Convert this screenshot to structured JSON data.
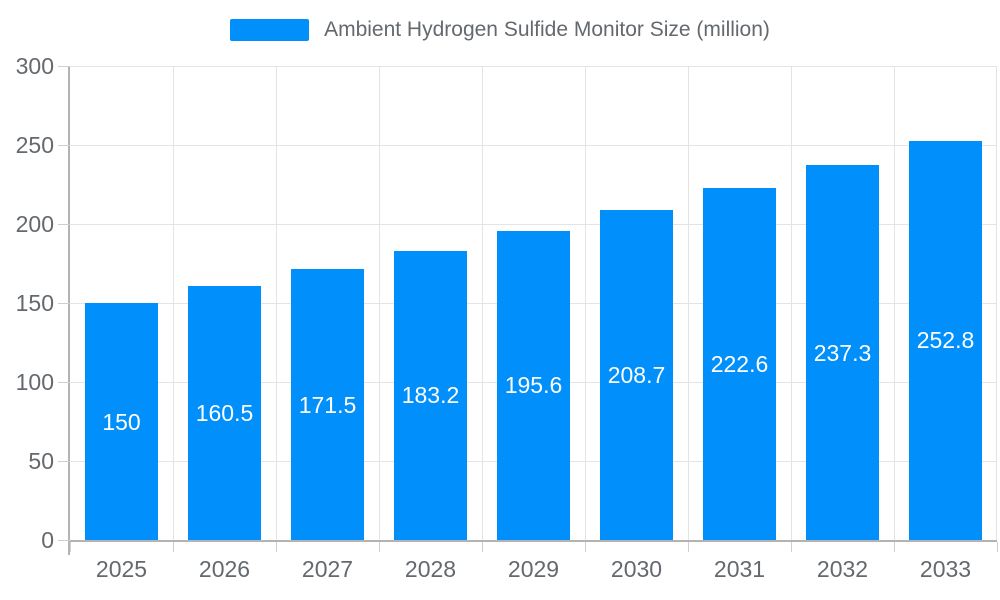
{
  "legend": {
    "label": "Ambient Hydrogen Sulfide Monitor Size (million)"
  },
  "colors": {
    "bar": "#008FFB",
    "grid": "#e4e4e4",
    "axis": "#b3b3b3",
    "tick": "#cfcfcf",
    "axis_text": "#64696e",
    "data_label_text": "#ffffff",
    "background": "#ffffff"
  },
  "chart_data": {
    "type": "bar",
    "title": "Ambient Hydrogen Sulfide Monitor Size (million)",
    "categories": [
      "2025",
      "2026",
      "2027",
      "2028",
      "2029",
      "2030",
      "2031",
      "2032",
      "2033"
    ],
    "series": [
      {
        "name": "Ambient Hydrogen Sulfide Monitor Size (million)",
        "values": [
          150,
          160.5,
          171.5,
          183.2,
          195.6,
          208.7,
          222.6,
          237.3,
          252.8
        ]
      }
    ],
    "data_labels": [
      "150",
      "160.5",
      "171.5",
      "183.2",
      "195.6",
      "208.7",
      "222.6",
      "237.3",
      "252.8"
    ],
    "xlabel": "",
    "ylabel": "",
    "ylim": [
      0,
      300
    ],
    "y_ticks": [
      0,
      50,
      100,
      150,
      200,
      250,
      300
    ],
    "grid": true,
    "legend_position": "top",
    "data_label_position": "center"
  }
}
